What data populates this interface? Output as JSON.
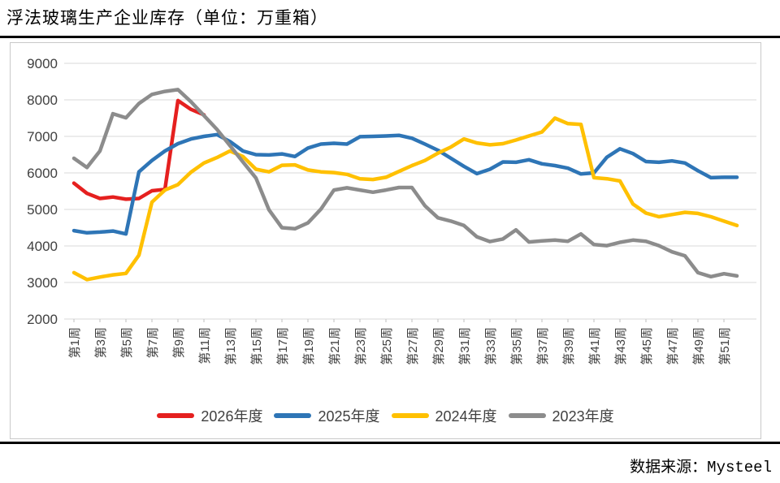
{
  "title": "浮法玻璃生产企业库存（单位：万重箱）",
  "source_note": "数据来源：Mysteel",
  "colors": {
    "grid": "#d9d9d9",
    "axis": "#bfbfbf",
    "tick_text": "#404040",
    "rule": "#000000"
  },
  "chart_data": {
    "type": "line",
    "title": "浮法玻璃生产企业库存（单位：万重箱）",
    "xlabel": "",
    "ylabel": "",
    "ylim": [
      2000,
      9000
    ],
    "yticks": [
      2000,
      3000,
      4000,
      5000,
      6000,
      7000,
      8000,
      9000
    ],
    "weeks_total": 52,
    "x_tick_labels": [
      "第1周",
      "第3周",
      "第5周",
      "第7周",
      "第9周",
      "第11周",
      "第13周",
      "第15周",
      "第17周",
      "第19周",
      "第21周",
      "第23周",
      "第25周",
      "第27周",
      "第29周",
      "第31周",
      "第33周",
      "第35周",
      "第37周",
      "第39周",
      "第41周",
      "第43周",
      "第45周",
      "第47周",
      "第49周",
      "第51周"
    ],
    "grid": "horizontal",
    "legend_position": "bottom",
    "series": [
      {
        "name": "2026年度",
        "color": "#e5201f",
        "start_week": 1,
        "values": [
          5720,
          5440,
          5300,
          5340,
          5280,
          5300,
          5510,
          5550,
          7980,
          7740,
          7590
        ]
      },
      {
        "name": "2025年度",
        "color": "#2e75b6",
        "start_week": 1,
        "values": [
          4420,
          4360,
          4380,
          4410,
          4330,
          6030,
          6340,
          6600,
          6800,
          6930,
          7000,
          7050,
          6860,
          6600,
          6500,
          6490,
          6520,
          6450,
          6680,
          6790,
          6810,
          6790,
          6990,
          7000,
          7010,
          7030,
          6950,
          6790,
          6620,
          6400,
          6180,
          5980,
          6100,
          6300,
          6290,
          6360,
          6250,
          6200,
          6130,
          5970,
          6000,
          6430,
          6660,
          6530,
          6310,
          6290,
          6330,
          6270,
          6060,
          5870,
          5880,
          5880
        ]
      },
      {
        "name": "2024年度",
        "color": "#ffc000",
        "start_week": 1,
        "values": [
          3270,
          3080,
          3150,
          3210,
          3250,
          3750,
          5200,
          5530,
          5680,
          6020,
          6270,
          6420,
          6600,
          6450,
          6100,
          6030,
          6210,
          6220,
          6080,
          6030,
          6010,
          5960,
          5840,
          5820,
          5880,
          6040,
          6200,
          6340,
          6540,
          6710,
          6930,
          6820,
          6770,
          6800,
          6900,
          7010,
          7120,
          7500,
          7350,
          7330,
          5870,
          5840,
          5780,
          5150,
          4900,
          4800,
          4860,
          4920,
          4890,
          4800,
          4680,
          4560
        ]
      },
      {
        "name": "2023年度",
        "color": "#8c8c8c",
        "start_week": 1,
        "values": [
          6400,
          6150,
          6600,
          7620,
          7510,
          7900,
          8150,
          8230,
          8280,
          7950,
          7570,
          7190,
          6750,
          6300,
          5860,
          4990,
          4500,
          4470,
          4630,
          5010,
          5530,
          5590,
          5530,
          5470,
          5530,
          5600,
          5600,
          5100,
          4770,
          4680,
          4560,
          4250,
          4120,
          4190,
          4440,
          4110,
          4140,
          4160,
          4130,
          4330,
          4040,
          4010,
          4100,
          4160,
          4130,
          4010,
          3840,
          3730,
          3270,
          3160,
          3240,
          3180
        ]
      }
    ]
  }
}
